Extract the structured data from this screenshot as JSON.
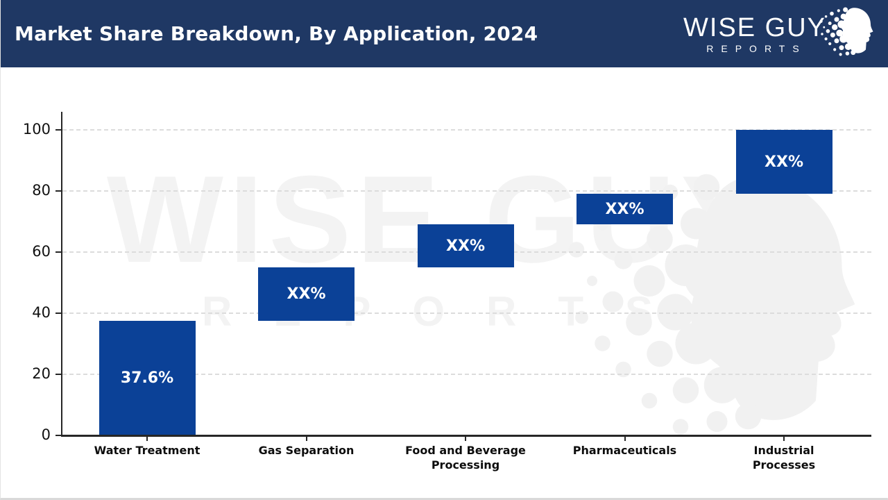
{
  "header": {
    "title": "Market Share Breakdown, By Application, 2024",
    "logo": {
      "line1": "WISE GUY",
      "line2": "REPORTS"
    },
    "bg_color": "#1f3864"
  },
  "watermark": {
    "line1": "WISE GUY",
    "line2": "REPORTS"
  },
  "chart_data": {
    "type": "bar",
    "subtype": "waterfall",
    "title": "Market Share Breakdown, By Application, 2024",
    "categories": [
      "Water Treatment",
      "Gas Separation",
      "Food and Beverage\nProcessing",
      "Pharmaceuticals",
      "Industrial\nProcesses"
    ],
    "series": [
      {
        "name": "Market share by application (%)",
        "segments": [
          {
            "category": "Water Treatment",
            "start": 0,
            "end": 37.6,
            "label": "37.6%"
          },
          {
            "category": "Gas Separation",
            "start": 37.6,
            "end": 55,
            "label": "XX%"
          },
          {
            "category": "Food and Beverage Processing",
            "start": 55,
            "end": 69,
            "label": "XX%"
          },
          {
            "category": "Pharmaceuticals",
            "start": 69,
            "end": 79,
            "label": "XX%"
          },
          {
            "category": "Industrial Processes",
            "start": 79,
            "end": 100,
            "label": "XX%"
          }
        ]
      }
    ],
    "yticks": [
      0,
      20,
      40,
      60,
      80,
      100
    ],
    "ylim": [
      0,
      106
    ],
    "xlabel": "",
    "ylabel": "",
    "grid": "horizontal-dashed",
    "legend": "none",
    "bar_color": "#0b4197",
    "bar_label_color": "#ffffff"
  }
}
